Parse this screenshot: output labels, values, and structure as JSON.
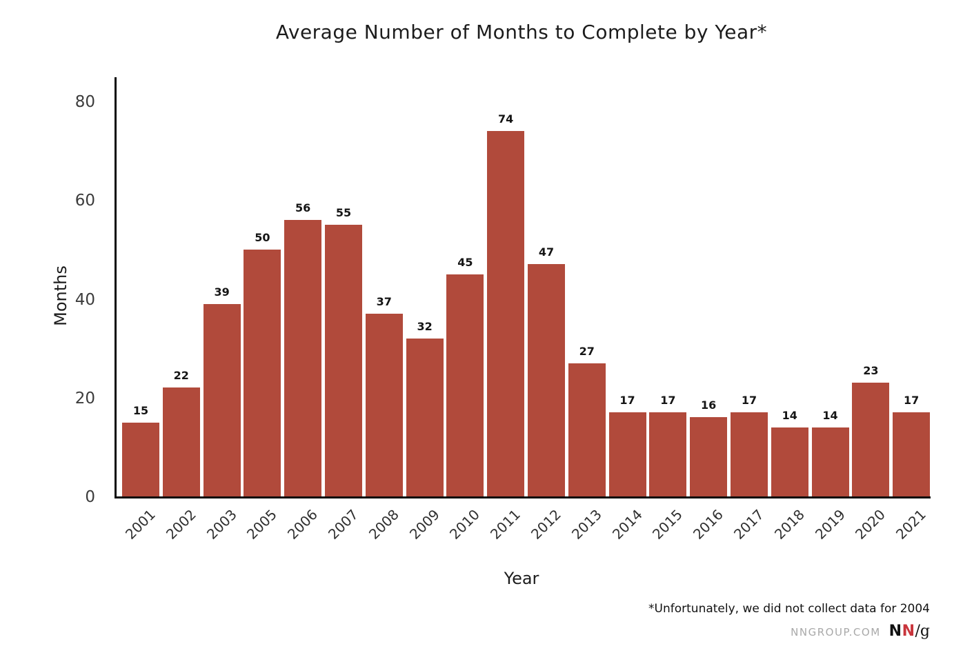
{
  "title": "Average Number of Months to Complete by Year*",
  "footnote": "*Unfortunately, we did not collect data for 2004",
  "branding": {
    "site": "NNGROUP.COM",
    "logo_n1": "N",
    "logo_n2": "N",
    "logo_suffix": "/g",
    "logo_red": "#c9353c",
    "site_color": "#a9a9a9"
  },
  "colors": {
    "bar": "#b14a3b",
    "axis": "#0a0a0a"
  },
  "chart_data": {
    "type": "bar",
    "title": "Average Number of Months to Complete by Year*",
    "xlabel": "Year",
    "ylabel": "Months",
    "categories": [
      "2001",
      "2002",
      "2003",
      "2005",
      "2006",
      "2007",
      "2008",
      "2009",
      "2010",
      "2011",
      "2012",
      "2013",
      "2014",
      "2015",
      "2016",
      "2017",
      "2018",
      "2019",
      "2020",
      "2021"
    ],
    "values": [
      15,
      22,
      39,
      50,
      56,
      55,
      37,
      32,
      45,
      74,
      47,
      27,
      17,
      17,
      16,
      17,
      14,
      14,
      23,
      17
    ],
    "yticks": [
      0,
      20,
      40,
      60,
      80
    ],
    "ylim": [
      0,
      85
    ],
    "grid": false,
    "legend": false,
    "bar_color": "#b14a3b",
    "missing_year_note": "2004 has no data"
  }
}
